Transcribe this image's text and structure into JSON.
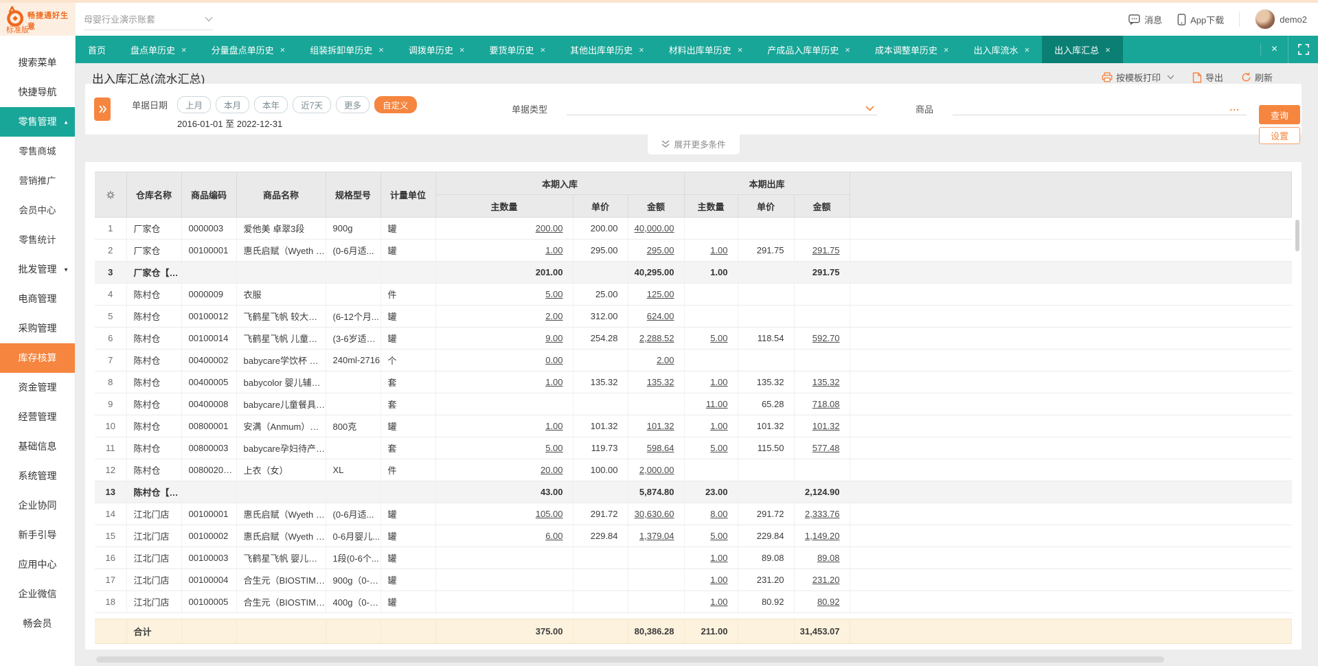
{
  "topbar": {
    "logo_text": "畅捷通好生意",
    "logo_sub": "标准版",
    "account": "母婴行业演示账套",
    "messages_label": "消息",
    "app_label": "App下载",
    "username": "demo2"
  },
  "tabs": {
    "items": [
      {
        "label": "首页",
        "closable": false,
        "active": false
      },
      {
        "label": "盘点单历史",
        "closable": true,
        "active": false
      },
      {
        "label": "分量盘点单历史",
        "closable": true,
        "active": false
      },
      {
        "label": "组装拆卸单历史",
        "closable": true,
        "active": false
      },
      {
        "label": "调拨单历史",
        "closable": true,
        "active": false
      },
      {
        "label": "要货单历史",
        "closable": true,
        "active": false
      },
      {
        "label": "其他出库单历史",
        "closable": true,
        "active": false
      },
      {
        "label": "材料出库单历史",
        "closable": true,
        "active": false
      },
      {
        "label": "产成品入库单历史",
        "closable": true,
        "active": false
      },
      {
        "label": "成本调整单历史",
        "closable": true,
        "active": false
      },
      {
        "label": "出入库流水",
        "closable": true,
        "active": false
      },
      {
        "label": "出入库汇总",
        "closable": true,
        "active": true
      }
    ]
  },
  "sidebar": {
    "items": [
      {
        "label": "搜索菜单",
        "variant": "plain",
        "arrow": ""
      },
      {
        "label": "快捷导航",
        "variant": "plain",
        "arrow": ""
      },
      {
        "label": "零售管理",
        "variant": "teal",
        "arrow": "up"
      },
      {
        "label": "零售商城",
        "variant": "sub",
        "arrow": ""
      },
      {
        "label": "营销推广",
        "variant": "sub",
        "arrow": ""
      },
      {
        "label": "会员中心",
        "variant": "sub",
        "arrow": ""
      },
      {
        "label": "零售统计",
        "variant": "sub",
        "arrow": ""
      },
      {
        "label": "批发管理",
        "variant": "plain",
        "arrow": "down"
      },
      {
        "label": "电商管理",
        "variant": "plain",
        "arrow": ""
      },
      {
        "label": "采购管理",
        "variant": "plain",
        "arrow": ""
      },
      {
        "label": "库存核算",
        "variant": "orange",
        "arrow": ""
      },
      {
        "label": "资金管理",
        "variant": "plain",
        "arrow": ""
      },
      {
        "label": "经营管理",
        "variant": "plain",
        "arrow": ""
      },
      {
        "label": "基础信息",
        "variant": "plain",
        "arrow": ""
      },
      {
        "label": "系统管理",
        "variant": "plain",
        "arrow": ""
      },
      {
        "label": "企业协同",
        "variant": "plain",
        "arrow": ""
      },
      {
        "label": "新手引导",
        "variant": "plain",
        "arrow": ""
      },
      {
        "label": "应用中心",
        "variant": "plain",
        "arrow": ""
      },
      {
        "label": "企业微信",
        "variant": "plain",
        "arrow": ""
      },
      {
        "label": "畅会员",
        "variant": "plain",
        "arrow": ""
      }
    ]
  },
  "page": {
    "title": "出入库汇总(流水汇总)",
    "toolbar": {
      "print": "按模板打印",
      "export": "导出",
      "refresh": "刷新"
    }
  },
  "filters": {
    "date_label": "单据日期",
    "date_presets": [
      "上月",
      "本月",
      "本年",
      "近7天",
      "更多"
    ],
    "date_custom": "自定义",
    "date_range": "2016-01-01 至 2022-12-31",
    "type_label": "单据类型",
    "product_label": "商品",
    "product_more": "...",
    "search_button": "查询",
    "settings_button": "设置",
    "expand_more": "展开更多条件"
  },
  "table": {
    "columns": [
      "仓库名称",
      "商品编码",
      "商品名称",
      "规格型号",
      "计量单位"
    ],
    "groups": {
      "inbound": "本期入库",
      "outbound": "本期出库"
    },
    "sub_columns": [
      "主数量",
      "单价",
      "金额"
    ],
    "rows": [
      {
        "seq": "1",
        "kind": "data",
        "warehouse": "厂家仓",
        "code": "0000003",
        "name": "爱他美 卓翠3段",
        "spec": "900g",
        "unit": "罐",
        "in": [
          "200.00",
          "200.00",
          "40,000.00"
        ],
        "out": [
          "",
          "",
          ""
        ]
      },
      {
        "seq": "2",
        "kind": "data",
        "warehouse": "厂家仓",
        "code": "00100001",
        "name": "惠氏启赋（Wyeth illu...",
        "spec": "(0-6月适...",
        "unit": "罐",
        "in": [
          "1.00",
          "295.00",
          "295.00"
        ],
        "out": [
          "1.00",
          "291.75",
          "291.75"
        ]
      },
      {
        "seq": "3",
        "kind": "subtotal",
        "warehouse": "厂家仓【小...",
        "code": "",
        "name": "",
        "spec": "",
        "unit": "",
        "in": [
          "201.00",
          "",
          "40,295.00"
        ],
        "out": [
          "1.00",
          "",
          "291.75"
        ]
      },
      {
        "seq": "4",
        "kind": "data",
        "warehouse": "陈村仓",
        "code": "0000009",
        "name": "衣服",
        "spec": "",
        "unit": "件",
        "in": [
          "5.00",
          "25.00",
          "125.00"
        ],
        "out": [
          "",
          "",
          ""
        ]
      },
      {
        "seq": "5",
        "kind": "data",
        "warehouse": "陈村仓",
        "code": "00100012",
        "name": "飞鹤星飞帆 较大婴儿配...",
        "spec": "(6-12个月...",
        "unit": "罐",
        "in": [
          "2.00",
          "312.00",
          "624.00"
        ],
        "out": [
          "",
          "",
          ""
        ]
      },
      {
        "seq": "6",
        "kind": "data",
        "warehouse": "陈村仓",
        "code": "00100014",
        "name": "飞鹤星飞帆 儿童奶粉 4...",
        "spec": "(3-6岁适用)...",
        "unit": "罐",
        "in": [
          "9.00",
          "254.28",
          "2,288.52"
        ],
        "out": [
          "5.00",
          "118.54",
          "592.70"
        ]
      },
      {
        "seq": "7",
        "kind": "data",
        "warehouse": "陈村仓",
        "code": "00400002",
        "name": "babycare学饮杯 儿童...",
        "spec": "240ml-2716",
        "unit": "个",
        "in": [
          "0.00",
          "",
          "2.00"
        ],
        "out": [
          "",
          "",
          ""
        ]
      },
      {
        "seq": "8",
        "kind": "data",
        "warehouse": "陈村仓",
        "code": "00400005",
        "name": "babycolor 婴儿辅食机 ...",
        "spec": "",
        "unit": "套",
        "in": [
          "1.00",
          "135.32",
          "135.32"
        ],
        "out": [
          "1.00",
          "135.32",
          "135.32"
        ]
      },
      {
        "seq": "9",
        "kind": "data",
        "warehouse": "陈村仓",
        "code": "00400008",
        "name": "babycare儿童餐具 婴...",
        "spec": "",
        "unit": "套",
        "in": [
          "",
          "",
          ""
        ],
        "out": [
          "11.00",
          "65.28",
          "718.08"
        ]
      },
      {
        "seq": "10",
        "kind": "data",
        "warehouse": "陈村仓",
        "code": "00800001",
        "name": "安满（Anmum）智孕...",
        "spec": "800克",
        "unit": "罐",
        "in": [
          "1.00",
          "101.32",
          "101.32"
        ],
        "out": [
          "1.00",
          "101.32",
          "101.32"
        ]
      },
      {
        "seq": "11",
        "kind": "data",
        "warehouse": "陈村仓",
        "code": "00800003",
        "name": "babycare孕妇待产包 ...",
        "spec": "",
        "unit": "套",
        "in": [
          "5.00",
          "119.73",
          "598.64"
        ],
        "out": [
          "5.00",
          "115.50",
          "577.48"
        ]
      },
      {
        "seq": "12",
        "kind": "data",
        "warehouse": "陈村仓",
        "code": "008002000...",
        "name": "上衣（女）",
        "spec": "XL",
        "unit": "件",
        "in": [
          "20.00",
          "100.00",
          "2,000.00"
        ],
        "out": [
          "",
          "",
          ""
        ]
      },
      {
        "seq": "13",
        "kind": "subtotal",
        "warehouse": "陈村仓【小...",
        "code": "",
        "name": "",
        "spec": "",
        "unit": "",
        "in": [
          "43.00",
          "",
          "5,874.80"
        ],
        "out": [
          "23.00",
          "",
          "2,124.90"
        ]
      },
      {
        "seq": "14",
        "kind": "data",
        "warehouse": "江北门店",
        "code": "00100001",
        "name": "惠氏启赋（Wyeth illu...",
        "spec": "(0-6月适...",
        "unit": "罐",
        "in": [
          "105.00",
          "291.72",
          "30,630.60"
        ],
        "out": [
          "8.00",
          "291.72",
          "2,333.76"
        ]
      },
      {
        "seq": "15",
        "kind": "data",
        "warehouse": "江北门店",
        "code": "00100002",
        "name": "惠氏启赋（Wyeth illu...",
        "spec": "0-6月婴儿...",
        "unit": "罐",
        "in": [
          "6.00",
          "229.84",
          "1,379.04"
        ],
        "out": [
          "5.00",
          "229.84",
          "1,149.20"
        ]
      },
      {
        "seq": "16",
        "kind": "data",
        "warehouse": "江北门店",
        "code": "00100003",
        "name": "飞鹤星飞帆 婴儿配方奶...",
        "spec": "1段(0-6个...",
        "unit": "罐",
        "in": [
          "",
          "",
          ""
        ],
        "out": [
          "1.00",
          "89.08",
          "89.08"
        ]
      },
      {
        "seq": "17",
        "kind": "data",
        "warehouse": "江北门店",
        "code": "00100004",
        "name": "合生元（BIOSTIME）...",
        "spec": "900g（0-6...",
        "unit": "罐",
        "in": [
          "",
          "",
          ""
        ],
        "out": [
          "1.00",
          "231.20",
          "231.20"
        ]
      },
      {
        "seq": "18",
        "kind": "data",
        "warehouse": "江北门店",
        "code": "00100005",
        "name": "合生元（BIOSTIME）...",
        "spec": "400g（0-6...",
        "unit": "罐",
        "in": [
          "",
          "",
          ""
        ],
        "out": [
          "1.00",
          "80.92",
          "80.92"
        ]
      }
    ],
    "total": {
      "label": "合计",
      "in": [
        "375.00",
        "",
        "80,386.28"
      ],
      "out": [
        "211.00",
        "",
        "31,453.07"
      ]
    }
  },
  "colors": {
    "accent_orange": "#f5853f",
    "brand_orange": "#f0681d",
    "teal": "#17a698",
    "teal_active": "#0b7f74",
    "total_row_bg": "#fcf2dd"
  }
}
